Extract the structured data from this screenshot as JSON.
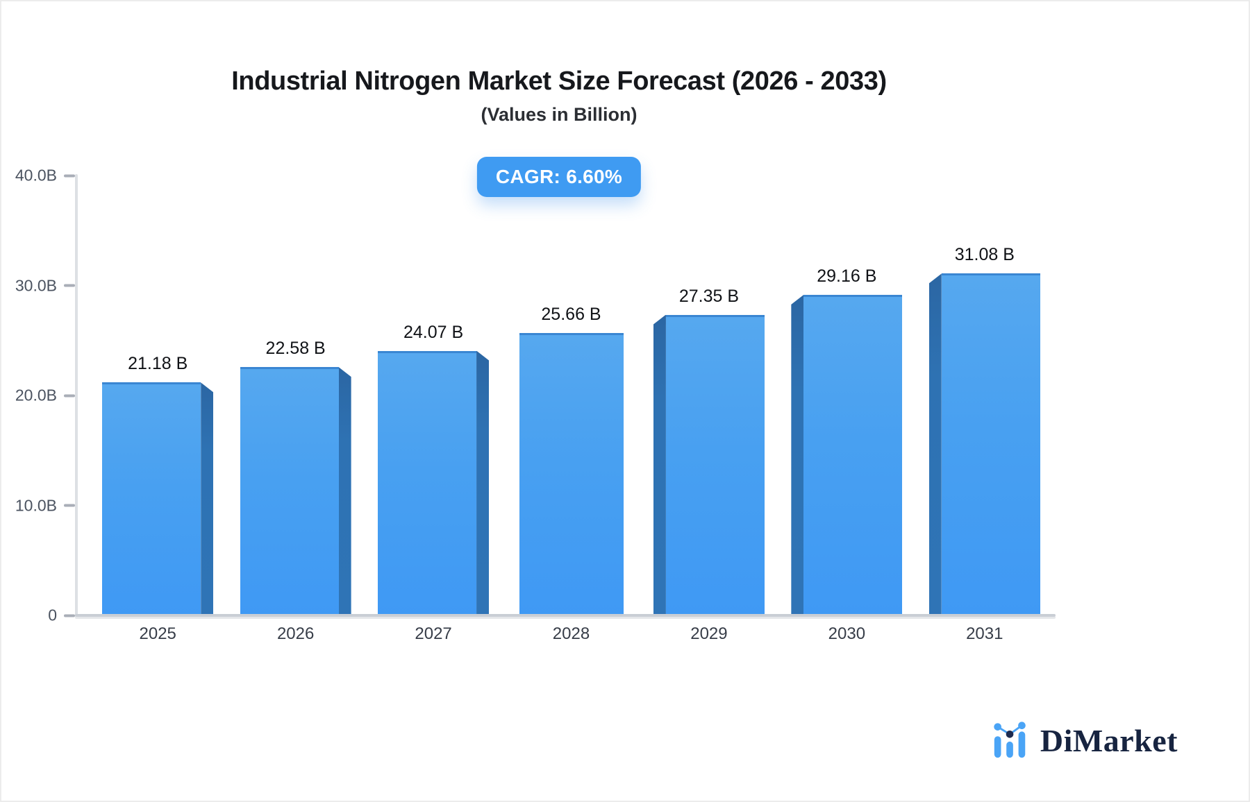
{
  "header": {
    "title": "Industrial Nitrogen Market Size Forecast (2026 - 2033)",
    "subtitle": "(Values in Billion)",
    "badge_label": "CAGR: 6.60%"
  },
  "chart_data": {
    "type": "bar",
    "title": "Industrial Nitrogen Market Size Forecast (2026 - 2033)",
    "subtitle": "(Values in Billion)",
    "categories": [
      "2025",
      "2026",
      "2027",
      "2028",
      "2029",
      "2030",
      "2031"
    ],
    "values": [
      21.18,
      22.58,
      24.07,
      25.66,
      27.35,
      29.16,
      31.08
    ],
    "bar_labels": [
      "21.18 B",
      "22.58 B",
      "24.07 B",
      "25.66 B",
      "27.35 B",
      "29.16 B",
      "31.08 B"
    ],
    "cagr": "6.60%",
    "xlabel": "",
    "ylabel": "",
    "ylim": [
      0,
      40
    ],
    "yticks": [
      {
        "value": 0,
        "label": "0"
      },
      {
        "value": 10,
        "label": "10.0B"
      },
      {
        "value": 20,
        "label": "20.0B"
      },
      {
        "value": 30,
        "label": "30.0B"
      },
      {
        "value": 40,
        "label": "40.0B"
      }
    ],
    "grid": false,
    "legend": null,
    "style": "3d-perspective-bars, extrusion faces toward chart center"
  },
  "colors": {
    "bar_face_top": "#56a8ef",
    "bar_face_bottom": "#3f99f4",
    "bar_side": "#2e72b3",
    "badge_bg": "#3f9bf2",
    "axis_line": "#dde0e4",
    "baseline": "#c9ced5",
    "tick_text": "#4b5360",
    "value_text": "#101216",
    "title_text": "#16181c",
    "logo_blue": "#4aa4f6",
    "logo_navy": "#172440"
  },
  "logo": {
    "text": "DiMarket",
    "icon": "mini-bar-chart-with-dots-icon"
  }
}
